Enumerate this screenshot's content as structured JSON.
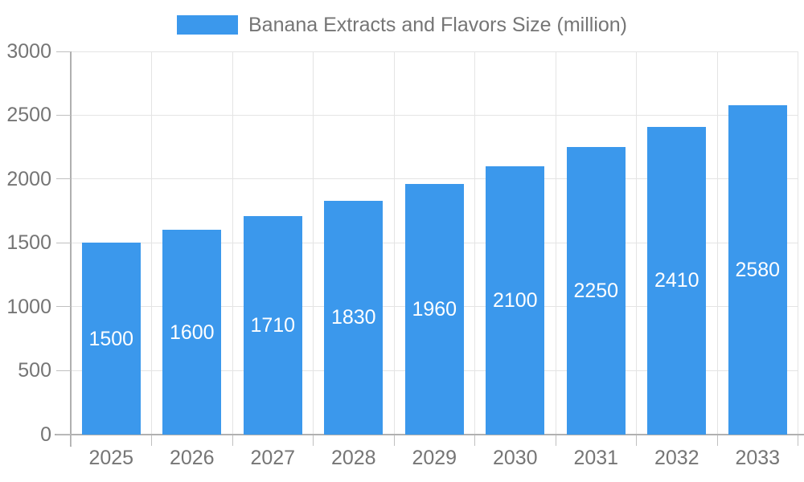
{
  "chart_data": {
    "type": "bar",
    "title": "Banana Extracts and Flavors Size (million)",
    "series_name": "Banana Extracts and Flavors Size (million)",
    "categories": [
      "2025",
      "2026",
      "2027",
      "2028",
      "2029",
      "2030",
      "2031",
      "2032",
      "2033"
    ],
    "values": [
      1500,
      1600,
      1710,
      1830,
      1960,
      2100,
      2250,
      2410,
      2580
    ],
    "xlabel": "",
    "ylabel": "",
    "ylim": [
      0,
      3000
    ],
    "y_ticks": [
      0,
      500,
      1000,
      1500,
      2000,
      2500,
      3000
    ],
    "grid": true,
    "legend_position": "top",
    "bar_color": "#3b98ec",
    "value_label_color": "#ffffff",
    "axis_text_color": "#757575",
    "axis_line_color": "#b0b0b0",
    "tick_color": "#c0c0c0",
    "grid_color": "#e4e4e4",
    "background_color": "#ffffff"
  }
}
